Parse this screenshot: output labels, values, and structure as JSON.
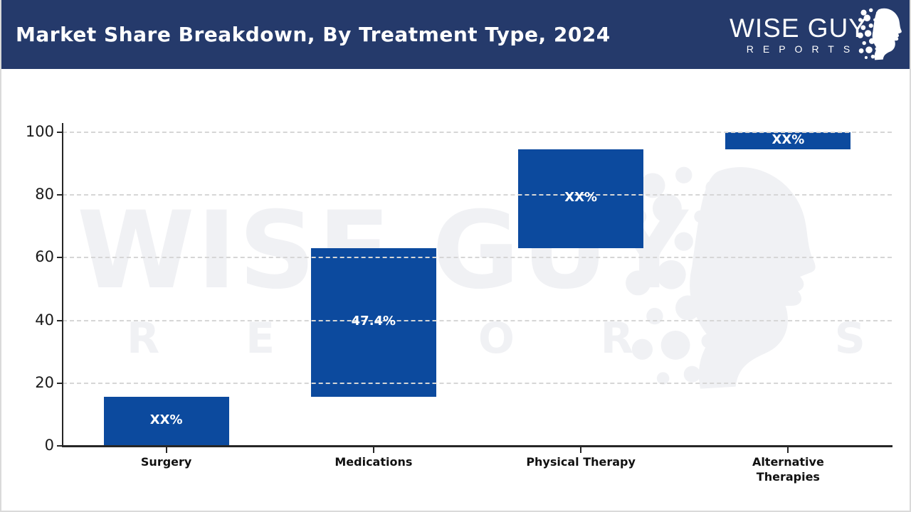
{
  "colors": {
    "header_bg": "#253a6b",
    "bar": "#0c4a9e",
    "grid": "#d6d6d6",
    "axis": "#262626",
    "watermark": "#f0f1f4",
    "border": "#dadada"
  },
  "header": {
    "title": "Market Share Breakdown, By Treatment Type, 2024",
    "logo": {
      "line1": "WISE GUY",
      "line2": "REPORTS"
    }
  },
  "watermark": {
    "line1": "WISE GUY",
    "line2": "R E P O R T S"
  },
  "chart_data": {
    "type": "bar",
    "variant": "floating-waterfall",
    "title": "Market Share Breakdown, By Treatment Type, 2024",
    "categories": [
      "Surgery",
      "Medications",
      "Physical Therapy",
      "Alternative Therapies"
    ],
    "bars": [
      {
        "category": "Surgery",
        "start": 0,
        "end": 15.7,
        "label": "XX%"
      },
      {
        "category": "Medications",
        "start": 15.7,
        "end": 63.1,
        "label": "47.4%"
      },
      {
        "category": "Physical Therapy",
        "start": 63.1,
        "end": 94.6,
        "label": "XX%"
      },
      {
        "category": "Alternative Therapies",
        "start": 94.6,
        "end": 100,
        "label": "XX%"
      }
    ],
    "xlabel": "",
    "ylabel": "",
    "yticks": [
      0,
      20,
      40,
      60,
      80,
      100
    ],
    "ylim": [
      0,
      100
    ],
    "grid": "horizontal-dashed",
    "legend": "none",
    "bar_color": "#0c4a9e"
  }
}
